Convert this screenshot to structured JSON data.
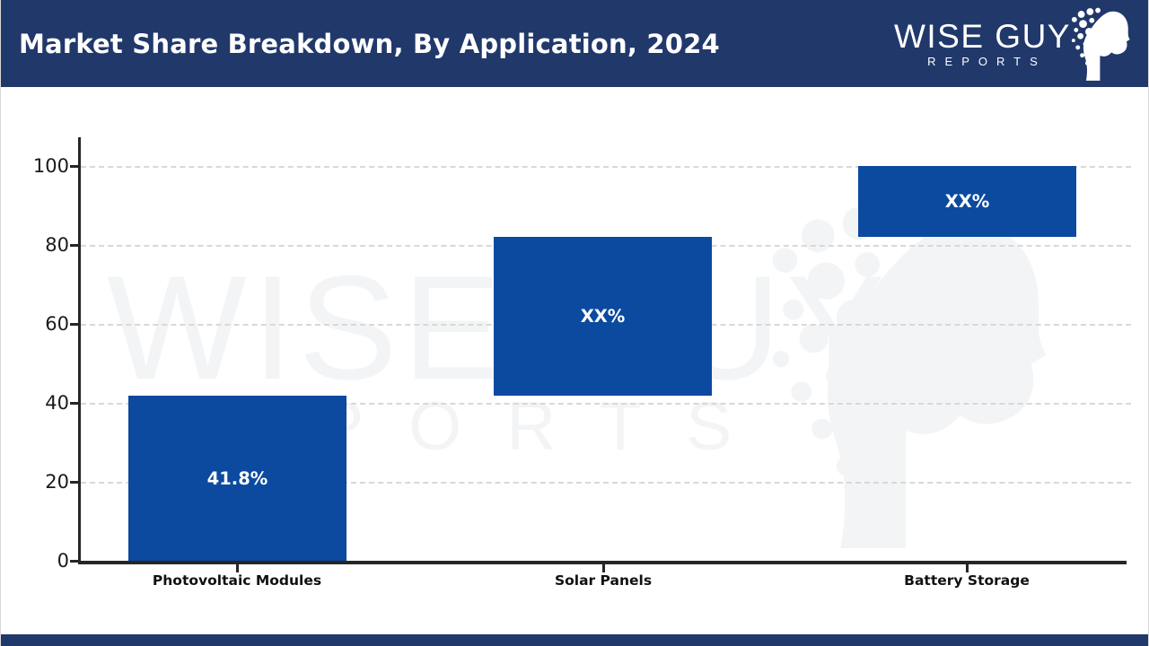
{
  "header": {
    "title": "Market Share Breakdown, By Application, 2024",
    "logo": {
      "line1": "WISE GUY",
      "line2": "REPORTS"
    }
  },
  "watermark": {
    "line1": "WISE GUY",
    "line2": "REPORTS"
  },
  "colors": {
    "header_bg": "#21386b",
    "footer_bg": "#21386b",
    "bar": "#0b4a9f",
    "grid": "#d8d8d8",
    "axis": "#262626",
    "watermark": "#f3f4f6",
    "bar_label_text": "#ffffff",
    "tick_text": "#1a1a1a"
  },
  "chart_data": {
    "type": "bar",
    "subtype": "waterfall-floating-bars",
    "title": "Market Share Breakdown, By Application, 2024",
    "categories": [
      "Photovoltaic Modules",
      "Solar Panels",
      "Battery Storage"
    ],
    "bars": [
      {
        "category": "Photovoltaic Modules",
        "label": "41.8%",
        "start": 0,
        "end": 41.8
      },
      {
        "category": "Solar Panels",
        "label": "XX%",
        "start": 41.8,
        "end": 82.1
      },
      {
        "category": "Battery Storage",
        "label": "XX%",
        "start": 82.1,
        "end": 100
      }
    ],
    "ylim": [
      0,
      100
    ],
    "yticks": [
      0,
      20,
      40,
      60,
      80,
      100
    ],
    "xlabel": "",
    "ylabel": "",
    "grid": "horizontal-dashed",
    "legend": "none"
  }
}
